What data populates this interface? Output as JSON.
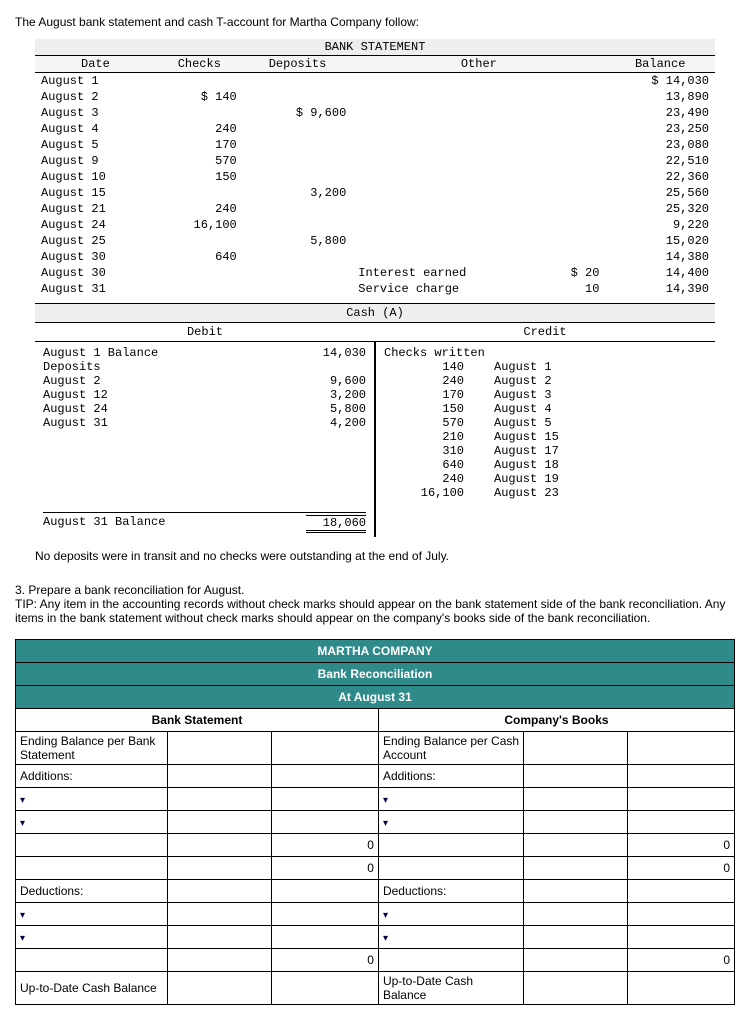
{
  "intro": "The August bank statement and cash T-account for Martha Company follow:",
  "bank_statement": {
    "title": "BANK STATEMENT",
    "headers": {
      "date": "Date",
      "checks": "Checks",
      "deposits": "Deposits",
      "other": "Other",
      "balance": "Balance"
    },
    "rows": [
      {
        "date": "August 1",
        "checks": "",
        "deposits": "",
        "other": "",
        "other_amt": "",
        "balance": "$ 14,030"
      },
      {
        "date": "August 2",
        "checks": "$ 140",
        "deposits": "",
        "other": "",
        "other_amt": "",
        "balance": "13,890"
      },
      {
        "date": "August 3",
        "checks": "",
        "deposits": "$ 9,600",
        "other": "",
        "other_amt": "",
        "balance": "23,490"
      },
      {
        "date": "August 4",
        "checks": "240",
        "deposits": "",
        "other": "",
        "other_amt": "",
        "balance": "23,250"
      },
      {
        "date": "August 5",
        "checks": "170",
        "deposits": "",
        "other": "",
        "other_amt": "",
        "balance": "23,080"
      },
      {
        "date": "August 9",
        "checks": "570",
        "deposits": "",
        "other": "",
        "other_amt": "",
        "balance": "22,510"
      },
      {
        "date": "August 10",
        "checks": "150",
        "deposits": "",
        "other": "",
        "other_amt": "",
        "balance": "22,360"
      },
      {
        "date": "August 15",
        "checks": "",
        "deposits": "3,200",
        "other": "",
        "other_amt": "",
        "balance": "25,560"
      },
      {
        "date": "August 21",
        "checks": "240",
        "deposits": "",
        "other": "",
        "other_amt": "",
        "balance": "25,320"
      },
      {
        "date": "August 24",
        "checks": "16,100",
        "deposits": "",
        "other": "",
        "other_amt": "",
        "balance": "9,220"
      },
      {
        "date": "August 25",
        "checks": "",
        "deposits": "5,800",
        "other": "",
        "other_amt": "",
        "balance": "15,020"
      },
      {
        "date": "August 30",
        "checks": "640",
        "deposits": "",
        "other": "",
        "other_amt": "",
        "balance": "14,380"
      },
      {
        "date": "August 30",
        "checks": "",
        "deposits": "",
        "other": "Interest earned",
        "other_amt": "$ 20",
        "balance": "14,400"
      },
      {
        "date": "August 31",
        "checks": "",
        "deposits": "",
        "other": "Service charge",
        "other_amt": "10",
        "balance": "14,390"
      }
    ]
  },
  "taccount": {
    "title": "Cash (A)",
    "debit_label": "Debit",
    "credit_label": "Credit",
    "debit_rows": [
      {
        "label": "August 1 Balance",
        "amt": "14,030"
      },
      {
        "label": "Deposits",
        "amt": ""
      },
      {
        "label": "August 2",
        "amt": "9,600"
      },
      {
        "label": "August 12",
        "amt": "3,200"
      },
      {
        "label": "August 24",
        "amt": "5,800"
      },
      {
        "label": "August 31",
        "amt": "4,200"
      }
    ],
    "credit_header": "Checks written",
    "credit_rows": [
      {
        "amt": "140",
        "label": "August 1"
      },
      {
        "amt": "240",
        "label": "August 2"
      },
      {
        "amt": "170",
        "label": "August 3"
      },
      {
        "amt": "150",
        "label": "August 4"
      },
      {
        "amt": "570",
        "label": "August 5"
      },
      {
        "amt": "210",
        "label": "August 15"
      },
      {
        "amt": "310",
        "label": "August 17"
      },
      {
        "amt": "640",
        "label": "August 18"
      },
      {
        "amt": "240",
        "label": "August 19"
      },
      {
        "amt": "16,100",
        "label": "August 23"
      }
    ],
    "end_label": "August 31 Balance",
    "end_amt": "18,060"
  },
  "note": "No deposits were in transit and no checks were outstanding at the end of July.",
  "q3": "3. Prepare a bank reconciliation for August.",
  "tip": "TIP: Any item in the accounting records without check marks should appear on the bank statement side of the bank reconciliation. Any items in the bank statement without check marks should appear on the company's books side of the bank reconciliation.",
  "recon": {
    "company": "MARTHA COMPANY",
    "title": "Bank Reconciliation",
    "date": "At August 31",
    "bank_col": "Bank Statement",
    "company_col": "Company's Books",
    "bank_ending": "Ending Balance per Bank Statement",
    "company_ending": "Ending Balance per Cash Account",
    "additions": "Additions:",
    "deductions": "Deductions:",
    "uptodate": "Up-to-Date Cash Balance",
    "zero": "0"
  }
}
